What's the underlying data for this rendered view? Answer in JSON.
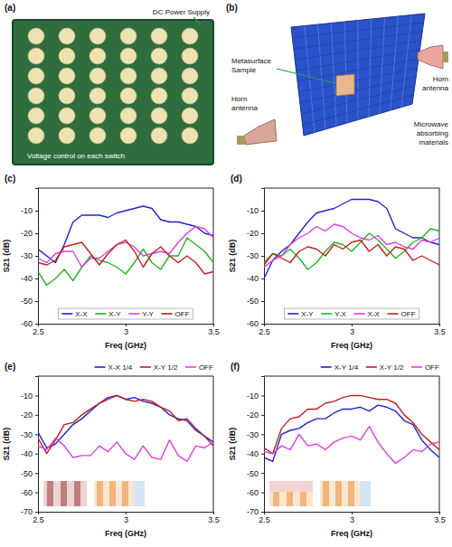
{
  "photo": {
    "label": "(a)",
    "power_label": "DC Power Supply",
    "control_label": "Voltage control on each switch"
  },
  "diagram": {
    "label": "(b)",
    "sample_label": "Metasurface Sample",
    "horn_labels": [
      "Horn antenna",
      "Horn antenna"
    ],
    "absorber_label": "Microwave absorbing materials"
  },
  "chart_data": [
    {
      "type": "line",
      "title": "(c)",
      "x_label": "Freq (GHz)",
      "y_label": "S21 (dB)",
      "x": [
        2.5,
        2.55,
        2.6,
        2.65,
        2.7,
        2.75,
        2.8,
        2.85,
        2.9,
        2.95,
        3.0,
        3.05,
        3.1,
        3.15,
        3.2,
        3.25,
        3.3,
        3.35,
        3.4,
        3.45,
        3.5
      ],
      "xlim": [
        2.5,
        3.5
      ],
      "xticks": [
        2.5,
        3,
        3.5
      ],
      "ylim": [
        -60,
        0
      ],
      "yticks": [
        -60,
        -50,
        -40,
        -30,
        -20,
        -10
      ],
      "legend": "bottom",
      "series": [
        {
          "name": "X-X",
          "color": "#2323c8",
          "values": [
            -27,
            -30,
            -33,
            -25,
            -15,
            -12,
            -12,
            -12,
            -13,
            -11,
            -10,
            -9,
            -8,
            -9,
            -14,
            -15,
            -15,
            -16,
            -17,
            -20,
            -21
          ]
        },
        {
          "name": "X-Y",
          "color": "#22b522",
          "values": [
            -37,
            -43,
            -40,
            -36,
            -41,
            -35,
            -30,
            -32,
            -33,
            -35,
            -38,
            -33,
            -27,
            -33,
            -36,
            -30,
            -30,
            -22,
            -25,
            -28,
            -33
          ]
        },
        {
          "name": "Y-Y",
          "color": "#dd3fdd",
          "values": [
            -31,
            -33,
            -29,
            -28,
            -28,
            -35,
            -31,
            -31,
            -28,
            -25,
            -24,
            -26,
            -30,
            -29,
            -28,
            -29,
            -24,
            -20,
            -17,
            -18,
            -22
          ]
        },
        {
          "name": "OFF",
          "color": "#c02020",
          "values": [
            -33,
            -34,
            -32,
            -26,
            -25,
            -24,
            -29,
            -34,
            -29,
            -25,
            -23,
            -28,
            -35,
            -29,
            -26,
            -30,
            -33,
            -30,
            -33,
            -38,
            -37
          ]
        }
      ]
    },
    {
      "type": "line",
      "title": "(d)",
      "x_label": "Freq (GHz)",
      "y_label": "S21 (dB)",
      "x": [
        2.5,
        2.55,
        2.6,
        2.65,
        2.7,
        2.75,
        2.8,
        2.85,
        2.9,
        2.95,
        3.0,
        3.05,
        3.1,
        3.15,
        3.2,
        3.25,
        3.3,
        3.35,
        3.4,
        3.45,
        3.5
      ],
      "xlim": [
        2.5,
        3.5
      ],
      "xticks": [
        2.5,
        3,
        3.5
      ],
      "ylim": [
        -60,
        0
      ],
      "yticks": [
        -60,
        -50,
        -40,
        -30,
        -20,
        -10
      ],
      "legend": "bottom",
      "series": [
        {
          "name": "X-Y",
          "color": "#2323c8",
          "values": [
            -40,
            -32,
            -28,
            -25,
            -20,
            -15,
            -11,
            -10,
            -9,
            -7,
            -5,
            -5,
            -5,
            -6,
            -9,
            -18,
            -20,
            -22,
            -22,
            -24,
            -25
          ]
        },
        {
          "name": "Y-X",
          "color": "#22b522",
          "values": [
            -33,
            -29,
            -30,
            -27,
            -31,
            -36,
            -33,
            -28,
            -24,
            -25,
            -28,
            -24,
            -20,
            -23,
            -27,
            -31,
            -28,
            -24,
            -22,
            -18,
            -19
          ]
        },
        {
          "name": "X-X",
          "color": "#dd3fdd",
          "values": [
            -35,
            -32,
            -30,
            -25,
            -22,
            -20,
            -17,
            -19,
            -16,
            -17,
            -20,
            -22,
            -23,
            -21,
            -25,
            -24,
            -26,
            -27,
            -23,
            -24,
            -22
          ]
        },
        {
          "name": "OFF",
          "color": "#c02020",
          "values": [
            -34,
            -29,
            -31,
            -33,
            -28,
            -26,
            -27,
            -30,
            -25,
            -27,
            -24,
            -23,
            -28,
            -25,
            -30,
            -26,
            -27,
            -32,
            -30,
            -32,
            -34
          ]
        }
      ]
    },
    {
      "type": "line",
      "title": "(e)",
      "x_label": "Freq (GHz)",
      "y_label": "S21 (dB)",
      "x": [
        2.5,
        2.55,
        2.6,
        2.65,
        2.7,
        2.75,
        2.8,
        2.85,
        2.9,
        2.95,
        3.0,
        3.05,
        3.1,
        3.15,
        3.2,
        3.25,
        3.3,
        3.35,
        3.4,
        3.45,
        3.5
      ],
      "xlim": [
        2.5,
        3.5
      ],
      "xticks": [
        2.5,
        3,
        3.5
      ],
      "ylim": [
        -70,
        0
      ],
      "yticks": [
        -70,
        -60,
        -50,
        -40,
        -30,
        -20,
        -10
      ],
      "legend": "top",
      "series": [
        {
          "name": "X-X 1/4",
          "color": "#2323c8",
          "values": [
            -29,
            -37,
            -35,
            -30,
            -25,
            -22,
            -18,
            -14,
            -11,
            -10,
            -12,
            -11,
            -13,
            -14,
            -16,
            -20,
            -22,
            -23,
            -28,
            -31,
            -34
          ]
        },
        {
          "name": "X-Y 1/2",
          "color": "#c02020",
          "values": [
            -32,
            -40,
            -33,
            -25,
            -24,
            -20,
            -17,
            -14,
            -12,
            -10,
            -12,
            -13,
            -12,
            -13,
            -16,
            -18,
            -23,
            -22,
            -27,
            -31,
            -36
          ]
        },
        {
          "name": "OFF",
          "color": "#dd3fdd",
          "values": [
            -36,
            -38,
            -32,
            -36,
            -42,
            -41,
            -41,
            -36,
            -39,
            -34,
            -40,
            -43,
            -36,
            -42,
            -43,
            -33,
            -41,
            -44,
            -36,
            -37,
            -34
          ]
        }
      ]
    },
    {
      "type": "line",
      "title": "(f)",
      "x_label": "Freq (GHz)",
      "y_label": "S21 (dB)",
      "x": [
        2.5,
        2.55,
        2.6,
        2.65,
        2.7,
        2.75,
        2.8,
        2.85,
        2.9,
        2.95,
        3.0,
        3.05,
        3.1,
        3.15,
        3.2,
        3.25,
        3.3,
        3.35,
        3.4,
        3.45,
        3.5
      ],
      "xlim": [
        2.5,
        3.5
      ],
      "xticks": [
        2.5,
        3,
        3.5
      ],
      "ylim": [
        -70,
        0
      ],
      "yticks": [
        -70,
        -60,
        -50,
        -40,
        -30,
        -20,
        -10
      ],
      "legend": "top",
      "series": [
        {
          "name": "X-Y 1/4",
          "color": "#2323c8",
          "values": [
            -42,
            -44,
            -30,
            -28,
            -27,
            -24,
            -22,
            -22,
            -19,
            -17,
            -17,
            -16,
            -18,
            -15,
            -16,
            -18,
            -23,
            -25,
            -33,
            -38,
            -42
          ]
        },
        {
          "name": "X-Y 1/2",
          "color": "#c02020",
          "values": [
            -37,
            -40,
            -27,
            -22,
            -21,
            -17,
            -17,
            -14,
            -13,
            -11,
            -10,
            -10,
            -11,
            -12,
            -12,
            -14,
            -20,
            -24,
            -30,
            -34,
            -38
          ]
        },
        {
          "name": "OFF",
          "color": "#dd3fdd",
          "values": [
            -39,
            -40,
            -36,
            -38,
            -30,
            -36,
            -35,
            -38,
            -34,
            -32,
            -31,
            -33,
            -26,
            -34,
            -40,
            -45,
            -42,
            -38,
            -39,
            -35,
            -34
          ]
        }
      ]
    }
  ]
}
